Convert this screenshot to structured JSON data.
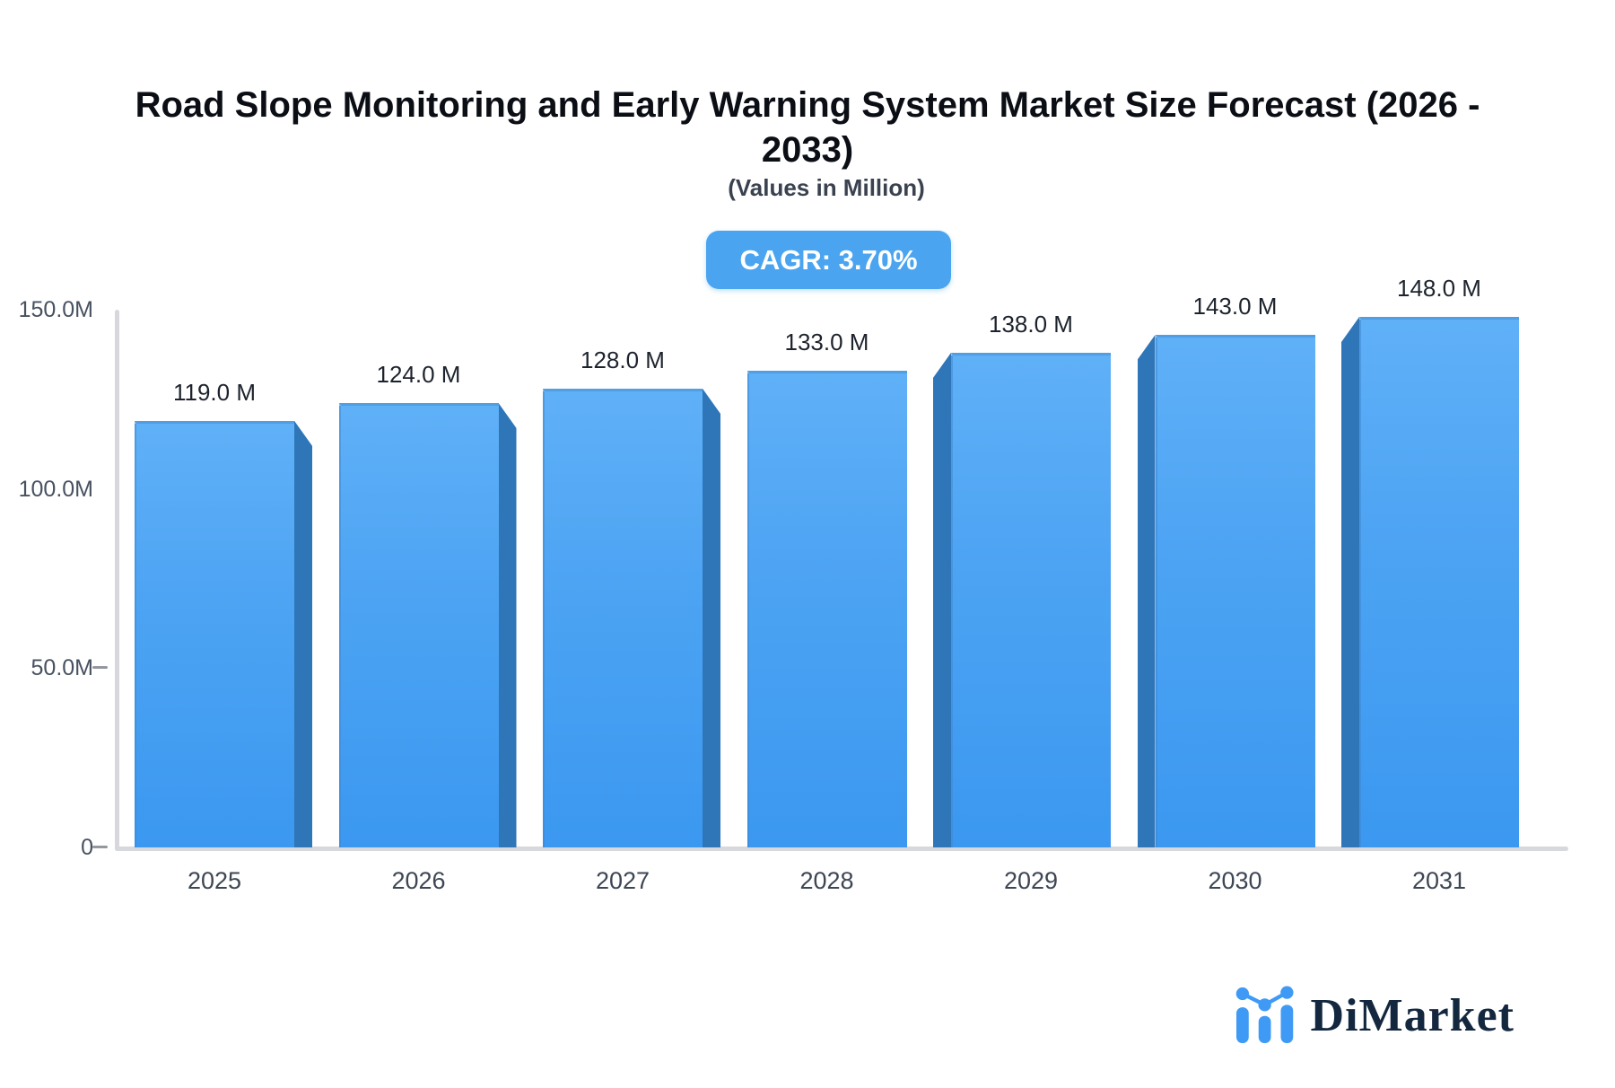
{
  "header": {
    "title_line1": "Road Slope Monitoring and Early Warning System Market Size Forecast (2026 -",
    "title_line2": "2033)",
    "subtitle": "(Values in Million)",
    "cagr_badge": "CAGR: 3.70%"
  },
  "chart_data": {
    "type": "bar",
    "title": "Road Slope Monitoring and Early Warning System Market Size Forecast (2026 - 2033)",
    "subtitle": "(Values in Million)",
    "cagr_percent": 3.7,
    "unit": "Million",
    "categories": [
      "2025",
      "2026",
      "2027",
      "2028",
      "2029",
      "2030",
      "2031"
    ],
    "values": [
      119.0,
      124.0,
      128.0,
      133.0,
      138.0,
      143.0,
      148.0
    ],
    "value_labels": [
      "119.0 M",
      "124.0 M",
      "128.0 M",
      "133.0 M",
      "138.0 M",
      "143.0 M",
      "148.0 M"
    ],
    "ylim": [
      0,
      150
    ],
    "y_ticks": [
      {
        "value": 150,
        "label": "150.0M",
        "tick_mark": false
      },
      {
        "value": 100,
        "label": "100.0M",
        "tick_mark": false
      },
      {
        "value": 50,
        "label": "50.0M",
        "tick_mark": true
      },
      {
        "value": 0,
        "label": "0",
        "tick_mark": true
      }
    ],
    "grid": false,
    "legend": "none",
    "bar_style": "3d-perspective"
  },
  "branding": {
    "logo_text": "DiMarket",
    "logo_icon": "bar-chart-logo-icon"
  },
  "colors": {
    "bar_face_top": "#5FB0F7",
    "bar_face_bottom": "#3B98F0",
    "bar_side_3d": "#2E76B8",
    "badge_bg": "#4BA4F0",
    "badge_text": "#FFFFFF",
    "axis_line": "#D7D8DD",
    "tick_mark": "#94979E",
    "title_text": "#0B0E14",
    "axis_label_text": "#475160",
    "logo_navy": "#13273F",
    "logo_blue": "#3E9AF5"
  }
}
